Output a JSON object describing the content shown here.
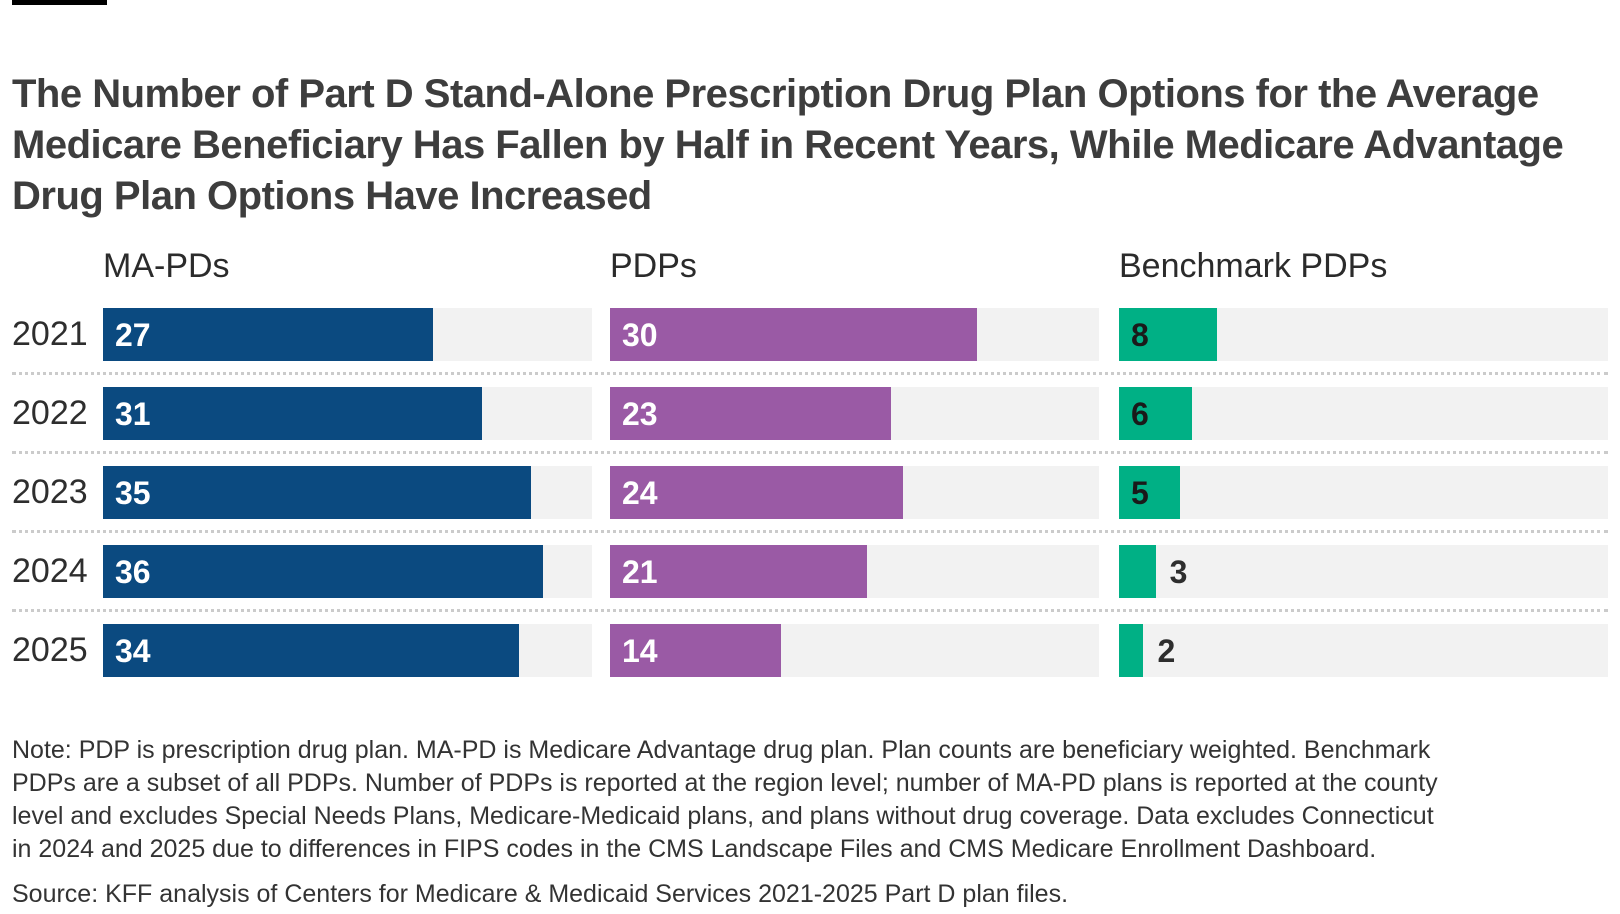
{
  "title_lines": [
    "The Number of Part D Stand-Alone Prescription Drug Plan Options for the Average",
    "Medicare Beneficiary Has Fallen by Half in Recent Years, While Medicare Advantage",
    "Drug Plan Options Have Increased"
  ],
  "note_lines": [
    "Note: PDP is prescription drug plan. MA-PD is Medicare Advantage drug plan. Plan counts are beneficiary weighted. Benchmark",
    "PDPs are a subset of all PDPs. Number of PDPs is reported at the region level; number of MA-PD plans is reported at the county",
    "level and excludes Special Needs Plans, Medicare-Medicaid plans, and plans without drug coverage. Data excludes Connecticut",
    "in 2024 and 2025 due to differences in FIPS codes in the CMS Landscape Files and CMS Medicare Enrollment Dashboard."
  ],
  "source": "Source: KFF analysis of Centers for Medicare & Medicaid Services 2021-2025 Part D plan files.",
  "chart_data": {
    "type": "bar",
    "orientation": "horizontal",
    "x_max": 40,
    "grid": false,
    "categories": [
      "2021",
      "2022",
      "2023",
      "2024",
      "2025"
    ],
    "series": [
      {
        "name": "MA-PDs",
        "color": "#0B4A80",
        "value_label_color": "#FFFFFF",
        "values": [
          27,
          31,
          35,
          36,
          34
        ]
      },
      {
        "name": "PDPs",
        "color": "#9A5AA5",
        "value_label_color": "#FFFFFF",
        "values": [
          30,
          23,
          24,
          21,
          14
        ]
      },
      {
        "name": "Benchmark PDPs",
        "color": "#00B085",
        "value_label_color": "#1A1A1A",
        "values": [
          8,
          6,
          5,
          3,
          2
        ]
      }
    ],
    "track_color": "#F2F2F2",
    "outside_label_color": "#2E2E2E"
  }
}
